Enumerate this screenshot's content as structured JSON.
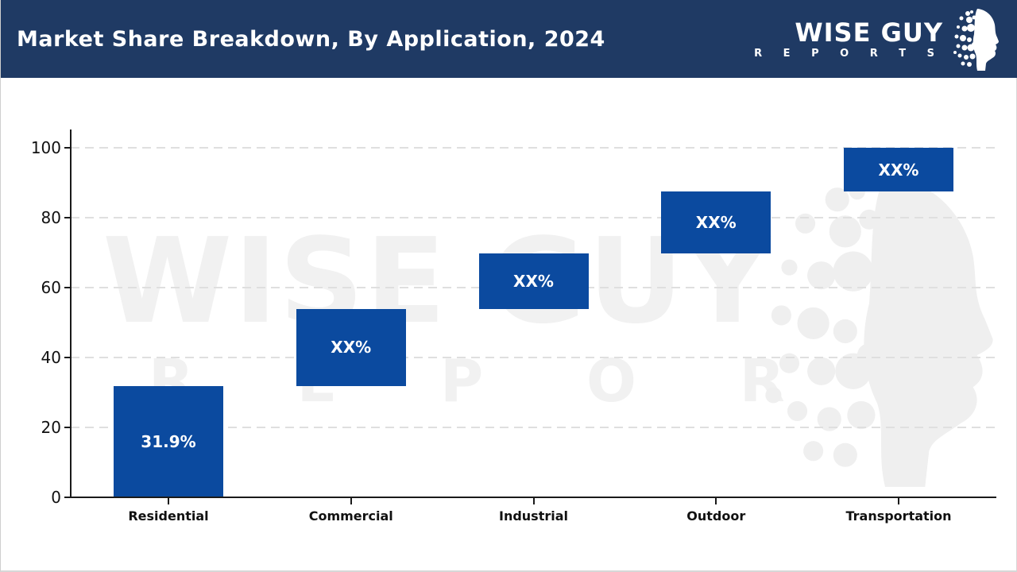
{
  "header": {
    "title": "Market Share Breakdown, By Application, 2024",
    "logo": {
      "line1": "WISE GUY",
      "line2": "R E P O R T S"
    }
  },
  "watermark": {
    "line1": "WISE GUY",
    "line2": "R E P O R T S"
  },
  "colors": {
    "header_bg": "#1f3a64",
    "bar": "#0b4a9f",
    "bar_label": "#ffffff",
    "gridline": "#dfdfdf",
    "axis": "#1a1a1a",
    "watermark": "#f1f1f1"
  },
  "chart_data": {
    "type": "bar",
    "subtype": "waterfall",
    "title": "Market Share Breakdown, By Application, 2024",
    "categories": [
      "Residential",
      "Commercial",
      "Industrial",
      "Outdoor",
      "Transportation"
    ],
    "segments": [
      {
        "category": "Residential",
        "start": 0,
        "end": 31.9,
        "label": "31.9%"
      },
      {
        "category": "Commercial",
        "start": 31.9,
        "end": 53.8,
        "label": "XX%"
      },
      {
        "category": "Industrial",
        "start": 53.8,
        "end": 69.8,
        "label": "XX%"
      },
      {
        "category": "Outdoor",
        "start": 69.8,
        "end": 87.5,
        "label": "XX%"
      },
      {
        "category": "Transportation",
        "start": 87.5,
        "end": 100,
        "label": "XX%"
      }
    ],
    "ylim": [
      0,
      100
    ],
    "yticks": [
      0,
      20,
      40,
      60,
      80,
      100
    ],
    "xlabel": "",
    "ylabel": "",
    "grid": "horizontal-dashed",
    "legend": "none"
  }
}
